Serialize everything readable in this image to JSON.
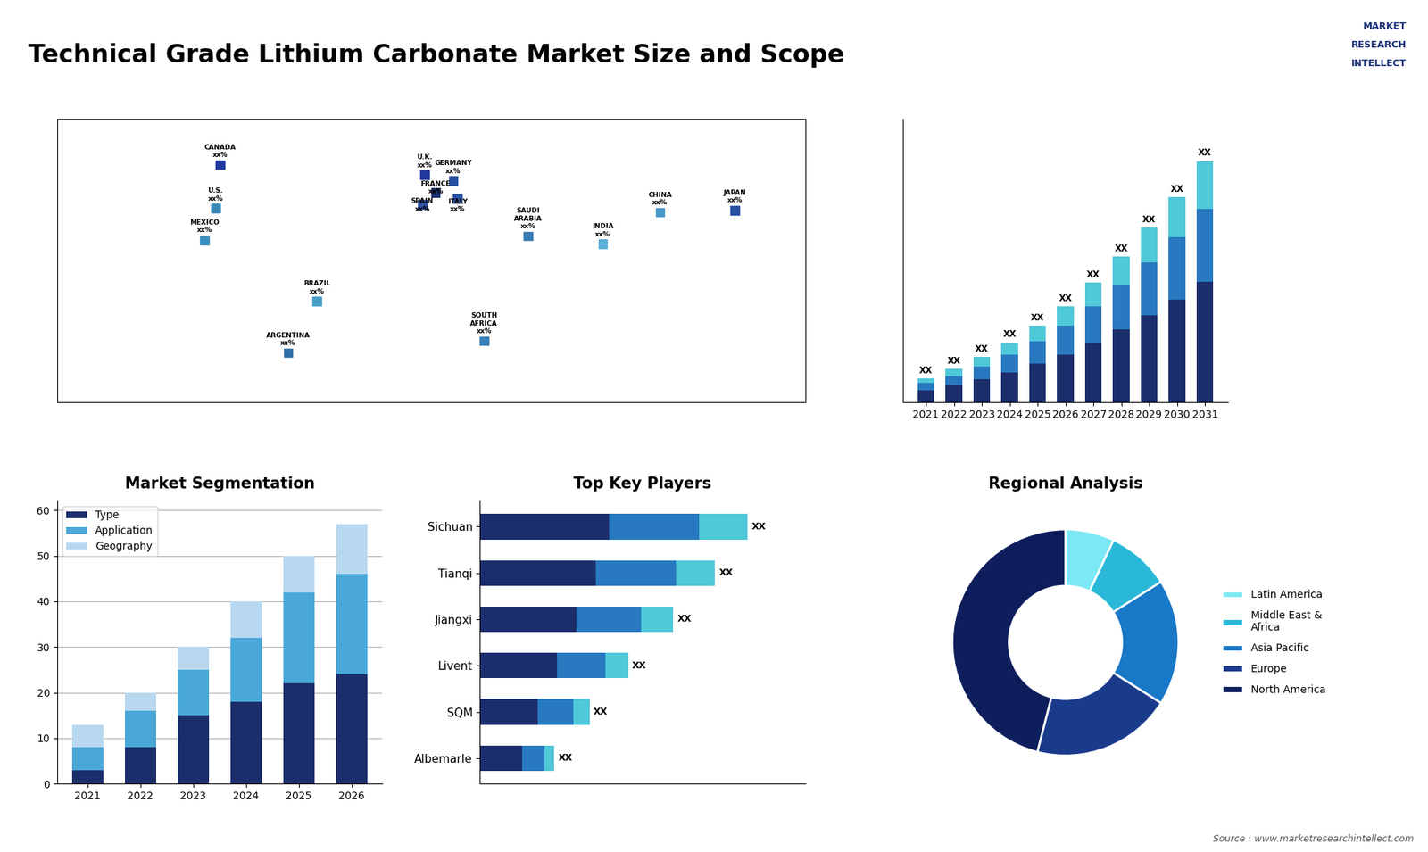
{
  "title": "Technical Grade Lithium Carbonate Market Size and Scope",
  "annotations": [
    "Source : www.marketresearchintellect.com",
    "MARKET",
    "RESEARCH",
    "INTELLECT"
  ],
  "chart_data": [
    {
      "type": "map",
      "categories": [
        "CANADA\nxx%",
        "U.S.\nxx%",
        "MEXICO\nxx%",
        "BRAZIL\nxx%",
        "ARGENTINA\nxx%",
        "U.K.\nxx%",
        "FRANCE\nxx%",
        "SPAIN\nxx%",
        "GERMANY\nxx%",
        "ITALY\nxx%",
        "SAUDI\nARABIA\nxx%",
        "SOUTH\nAFRICA\nxx%",
        "CHINA\nxx%",
        "INDIA\nxx%",
        "JAPAN\nxx%"
      ],
      "x": [
        -96,
        -98,
        -103,
        -52,
        -65,
        -3,
        2,
        -4,
        10,
        12,
        44,
        24,
        104,
        78,
        138
      ],
      "values": [
        60,
        38,
        22,
        -9,
        -35,
        55,
        46,
        40,
        52,
        43,
        24,
        -29,
        36,
        20,
        37
      ],
      "colors": [
        "#2038a0",
        "#3a8ab8",
        "#3a90c0",
        "#4aa0c8",
        "#3070a8",
        "#2038a0",
        "#1b2e6b",
        "#2850a0",
        "#2850a0",
        "#2850a0",
        "#3a7ab0",
        "#3a80b8",
        "#4898c8",
        "#5ab0d8",
        "#2850a0"
      ],
      "xlim": [
        -170,
        170
      ],
      "ylim": [
        -60,
        83
      ],
      "tick_labels": false
    },
    {
      "type": "bar",
      "stacked": true,
      "categories": [
        "2021",
        "2022",
        "2023",
        "2024",
        "2025",
        "2026",
        "2027",
        "2028",
        "2029",
        "2030",
        "2031"
      ],
      "series": [
        {
          "color": "#1b2e6b",
          "values": [
            1.0,
            1.4,
            1.9,
            2.5,
            3.2,
            4.0,
            5.0,
            6.1,
            7.3,
            8.6,
            10.1
          ]
        },
        {
          "color": "#2979c0",
          "values": [
            0.6,
            0.8,
            1.1,
            1.5,
            1.9,
            2.4,
            3.0,
            3.7,
            4.4,
            5.2,
            6.1
          ]
        },
        {
          "color": "#4fc8d8",
          "values": [
            0.4,
            0.6,
            0.8,
            1.0,
            1.3,
            1.6,
            2.0,
            2.4,
            2.9,
            3.4,
            4.0
          ]
        }
      ],
      "data_labels": true,
      "value_labels": [
        "XX",
        "XX",
        "XX",
        "XX",
        "XX",
        "XX",
        "XX",
        "XX",
        "XX",
        "XX",
        "XX"
      ],
      "ylim": [
        0,
        23.7
      ],
      "tick_labels": "x"
    },
    {
      "type": "bar",
      "title": "Market Segmentation",
      "stacked": true,
      "categories": [
        "2021",
        "2022",
        "2023",
        "2024",
        "2025",
        "2026"
      ],
      "series": [
        {
          "name": "Type",
          "color": "#1b2e6b",
          "values": [
            3,
            8,
            15,
            18,
            22,
            24
          ]
        },
        {
          "name": "Application",
          "color": "#4aa8d8",
          "values": [
            5,
            8,
            10,
            14,
            20,
            22
          ]
        },
        {
          "name": "Geography",
          "color": "#b8d8f0",
          "values": [
            5,
            4,
            5,
            8,
            8,
            11
          ]
        }
      ],
      "ylim": [
        0,
        62
      ],
      "yticks": [
        0,
        10,
        20,
        30,
        40,
        50,
        60
      ],
      "grid": true,
      "legend": "upper left"
    },
    {
      "type": "bar",
      "orientation": "horizontal",
      "title": "Top Key Players",
      "stacked": true,
      "categories": [
        "Sichuan",
        "Tianqi",
        "Jiangxi",
        "Livent",
        "SQM",
        "Albemarle"
      ],
      "series": [
        {
          "color": "#1b2e6b",
          "values": [
            4.0,
            3.6,
            3.0,
            2.4,
            1.8,
            1.3
          ]
        },
        {
          "color": "#2979c0",
          "values": [
            2.8,
            2.5,
            2.0,
            1.5,
            1.1,
            0.7
          ]
        },
        {
          "color": "#4fc8d8",
          "values": [
            1.5,
            1.2,
            1.0,
            0.7,
            0.5,
            0.3
          ]
        }
      ],
      "data_labels": true,
      "value_labels": [
        "XX",
        "XX",
        "XX",
        "XX",
        "XX",
        "XX"
      ],
      "xlim": [
        0,
        10.1
      ],
      "tick_labels": "y"
    },
    {
      "type": "donut",
      "title": "Regional Analysis",
      "categories": [
        "Latin America",
        "Middle East &\nAfrica",
        "Asia Pacific",
        "Europe",
        "North America"
      ],
      "values": [
        7,
        9,
        18,
        20,
        46
      ],
      "colors": [
        "#7de8f5",
        "#29b8d8",
        "#1a78c8",
        "#1a3a8c",
        "#0e1e5c"
      ],
      "legend": "center left"
    }
  ]
}
